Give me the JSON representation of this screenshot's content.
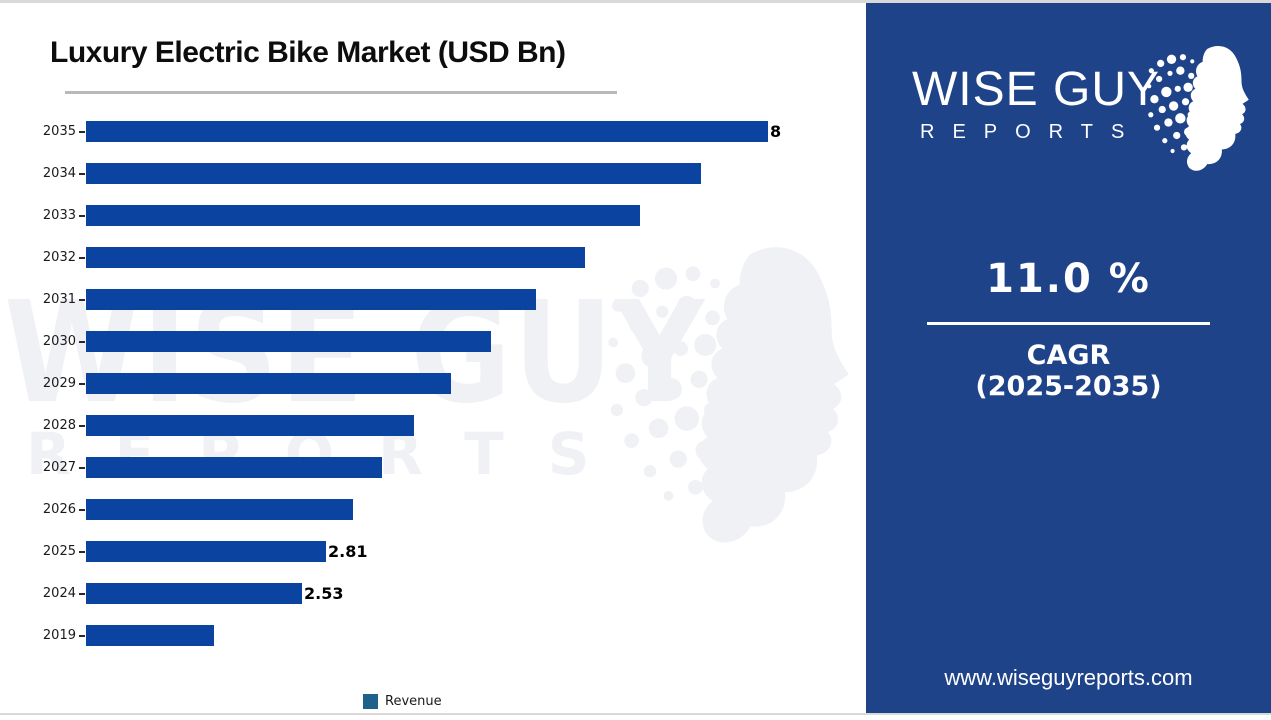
{
  "chart_data": {
    "type": "bar",
    "orientation": "horizontal",
    "title": "Luxury Electric Bike Market (USD Bn)",
    "categories": [
      "2035",
      "2034",
      "2033",
      "2032",
      "2031",
      "2030",
      "2029",
      "2028",
      "2027",
      "2026",
      "2025",
      "2024",
      "2019"
    ],
    "values": [
      7.98,
      7.19,
      6.48,
      5.84,
      5.26,
      4.74,
      4.27,
      3.84,
      3.46,
      3.12,
      2.81,
      2.53,
      1.5
    ],
    "bar_labels": [
      "8",
      "",
      "",
      "",
      "",
      "",
      "",
      "",
      "",
      "",
      "2.81",
      "2.53",
      ""
    ],
    "xlim": [
      0,
      8.3
    ],
    "grid": false,
    "legend_position": "bottom",
    "legend": {
      "label": "Revenue"
    }
  },
  "watermark": {
    "line1": "WISE GUY",
    "line2": "REPORTS"
  },
  "sidebar": {
    "logo_line1": "WISE GUY",
    "logo_line2": "REPORTS",
    "cagr_value": "11.0 %",
    "cagr_label": "CAGR",
    "cagr_period": "(2025-2035)",
    "website": "www.wiseguyreports.com"
  },
  "colors": {
    "bar": "#0b44a0",
    "panel": "#1f4389",
    "legend_swatch": "#20618c"
  }
}
